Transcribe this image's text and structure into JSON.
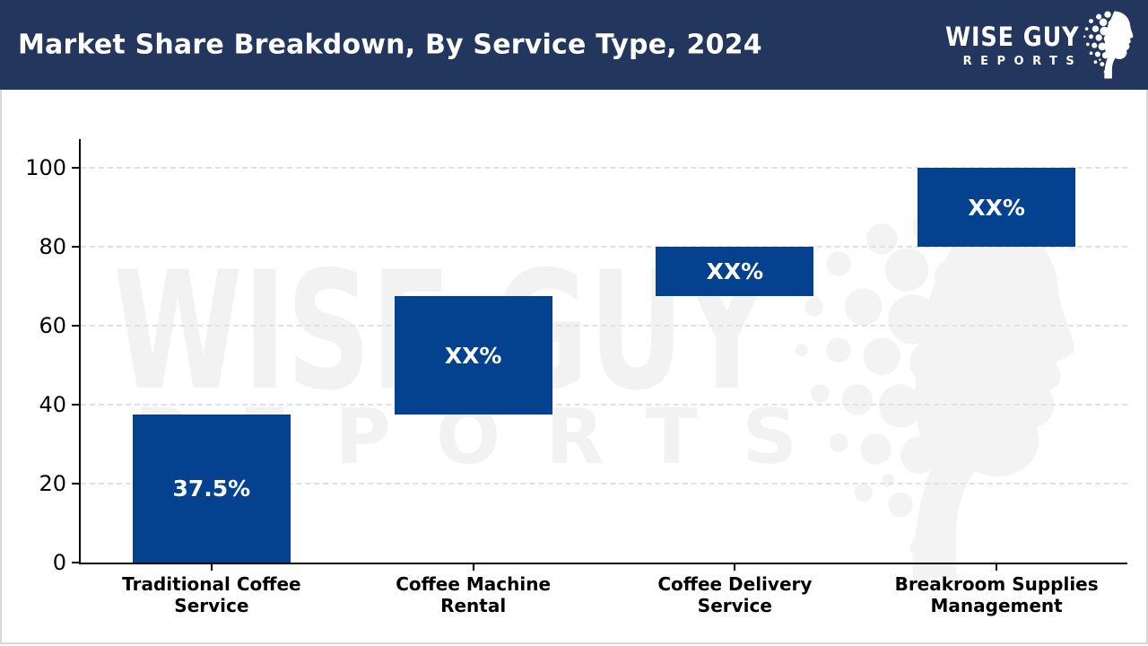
{
  "header": {
    "title": "Market Share Breakdown, By Service Type, 2024",
    "brand": {
      "name_top": "WISE GUY",
      "name_bottom": "REPORTS",
      "face_icon": "dots-face-profile"
    }
  },
  "watermark": {
    "text_top": "WISE GUY",
    "text_bottom": "REPORTS",
    "face_icon": "dots-face-profile"
  },
  "chart_data": {
    "type": "bar",
    "subtype": "waterfall",
    "title": "Market Share Breakdown, By Service Type, 2024",
    "categories": [
      "Traditional Coffee\nService",
      "Coffee Machine\nRental",
      "Coffee Delivery\nService",
      "Breakroom Supplies\nManagement"
    ],
    "bars": [
      {
        "category": "Traditional Coffee Service",
        "start": 0,
        "end": 37.5,
        "label": "37.5%"
      },
      {
        "category": "Coffee Machine Rental",
        "start": 37.5,
        "end": 67.5,
        "label": "XX%"
      },
      {
        "category": "Coffee Delivery Service",
        "start": 67.5,
        "end": 80,
        "label": "XX%"
      },
      {
        "category": "Breakroom Supplies Management",
        "start": 80,
        "end": 100,
        "label": "XX%"
      }
    ],
    "yticks": [
      0,
      20,
      40,
      60,
      80,
      100
    ],
    "ylim": [
      0,
      107.3
    ],
    "xlabel": "",
    "ylabel": "",
    "grid": "dashed-horizontal",
    "legend": "none",
    "bar_color": "#04418f",
    "bar_label_color": "#ffffff"
  },
  "colors": {
    "header_bg": "#22365e",
    "bar_blue": "#04418f",
    "gridline": "#e2e2e2",
    "watermark": "#f2f2f2",
    "frame_border": "#d9d9d9"
  }
}
